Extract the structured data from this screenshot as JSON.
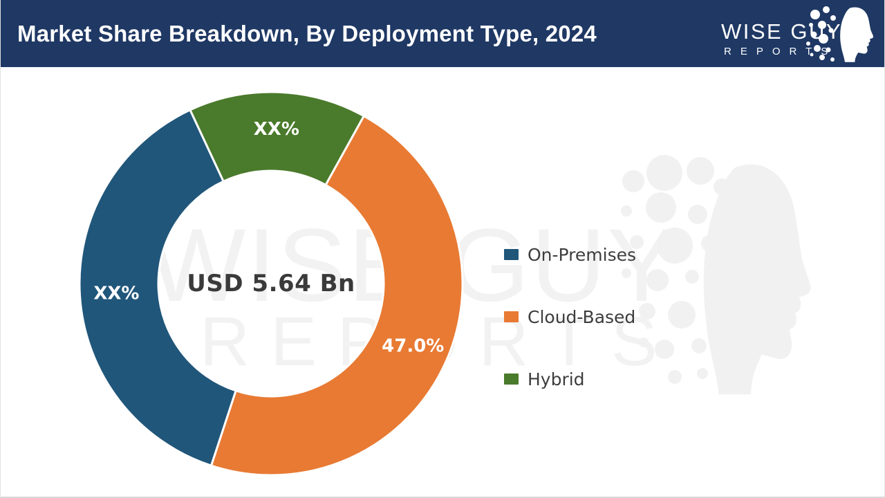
{
  "header": {
    "title": "Market Share Breakdown, By Deployment Type, 2024",
    "logo": {
      "name": "WISE GUY",
      "tagline": "REPORTS"
    }
  },
  "watermark": {
    "name": "WISE GUY",
    "tagline": "REPORTS"
  },
  "colors": {
    "header_bg": "#1f3864",
    "on_premises": "#20567A",
    "cloud_based": "#E87A33",
    "hybrid": "#4A7A2B",
    "center_text": "#3a3a3a",
    "legend_text": "#3d3d3d",
    "watermark": "#f2f2f3"
  },
  "chart_data": {
    "type": "pie",
    "subtype": "donut",
    "title": "Market Share Breakdown, By Deployment Type, 2024",
    "center_label": "USD 5.64 Bn",
    "legend_position": "right",
    "start_angle_deg": -25,
    "categories": [
      "On-Premises",
      "Cloud-Based",
      "Hybrid"
    ],
    "shown_labels": [
      "XX%",
      "47.0%",
      "XX%"
    ],
    "slices": [
      {
        "label": "Hybrid",
        "shown_value": "XX%",
        "estimated_pct": 15,
        "color": "#4A7A2B"
      },
      {
        "label": "Cloud-Based",
        "shown_value": "47.0%",
        "estimated_pct": 47,
        "color": "#E87A33"
      },
      {
        "label": "On-Premises",
        "shown_value": "XX%",
        "estimated_pct": 38,
        "color": "#20567A"
      }
    ]
  },
  "legend": {
    "items": [
      {
        "label": "On-Premises",
        "color": "#20567A"
      },
      {
        "label": "Cloud-Based",
        "color": "#E87A33"
      },
      {
        "label": "Hybrid",
        "color": "#4A7A2B"
      }
    ]
  }
}
